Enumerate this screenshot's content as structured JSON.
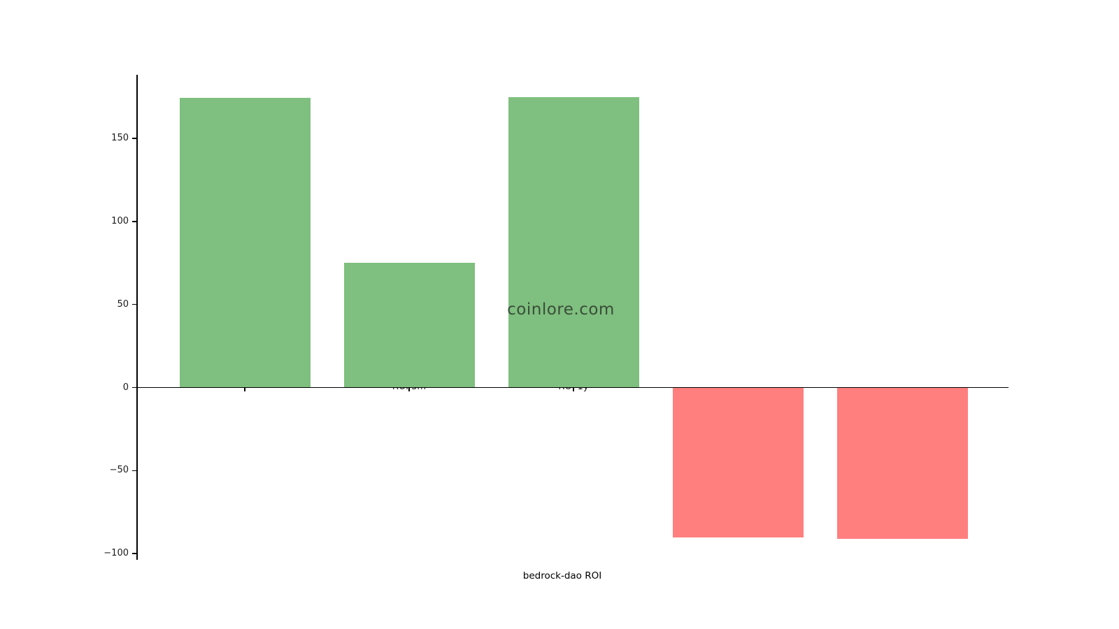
{
  "watermark": "coinlore.com",
  "chart_data": {
    "type": "bar",
    "title": "",
    "xlabel": "bedrock-dao ROI",
    "ylabel": "",
    "categories": [
      "",
      "ROI 3m",
      "ROI 1y",
      "",
      ""
    ],
    "values": [
      174.7,
      75.3,
      175.1,
      -90.4,
      -91.1
    ],
    "series_note": "single series; positive bars green, negative bars red",
    "y_ticks": [
      150,
      100,
      50,
      0,
      -50,
      -100
    ],
    "y_tick_labels": [
      "150",
      "100",
      "50",
      "0",
      "−50",
      "−100"
    ],
    "ylim": [
      -104.5,
      189.8
    ],
    "grid": false,
    "legend_position": "none",
    "colors": {
      "positive_bar": "#7fbf7f",
      "negative_bar": "#ff7f7f",
      "axis": "#000000",
      "tick_text": "#1a1a1a"
    }
  }
}
